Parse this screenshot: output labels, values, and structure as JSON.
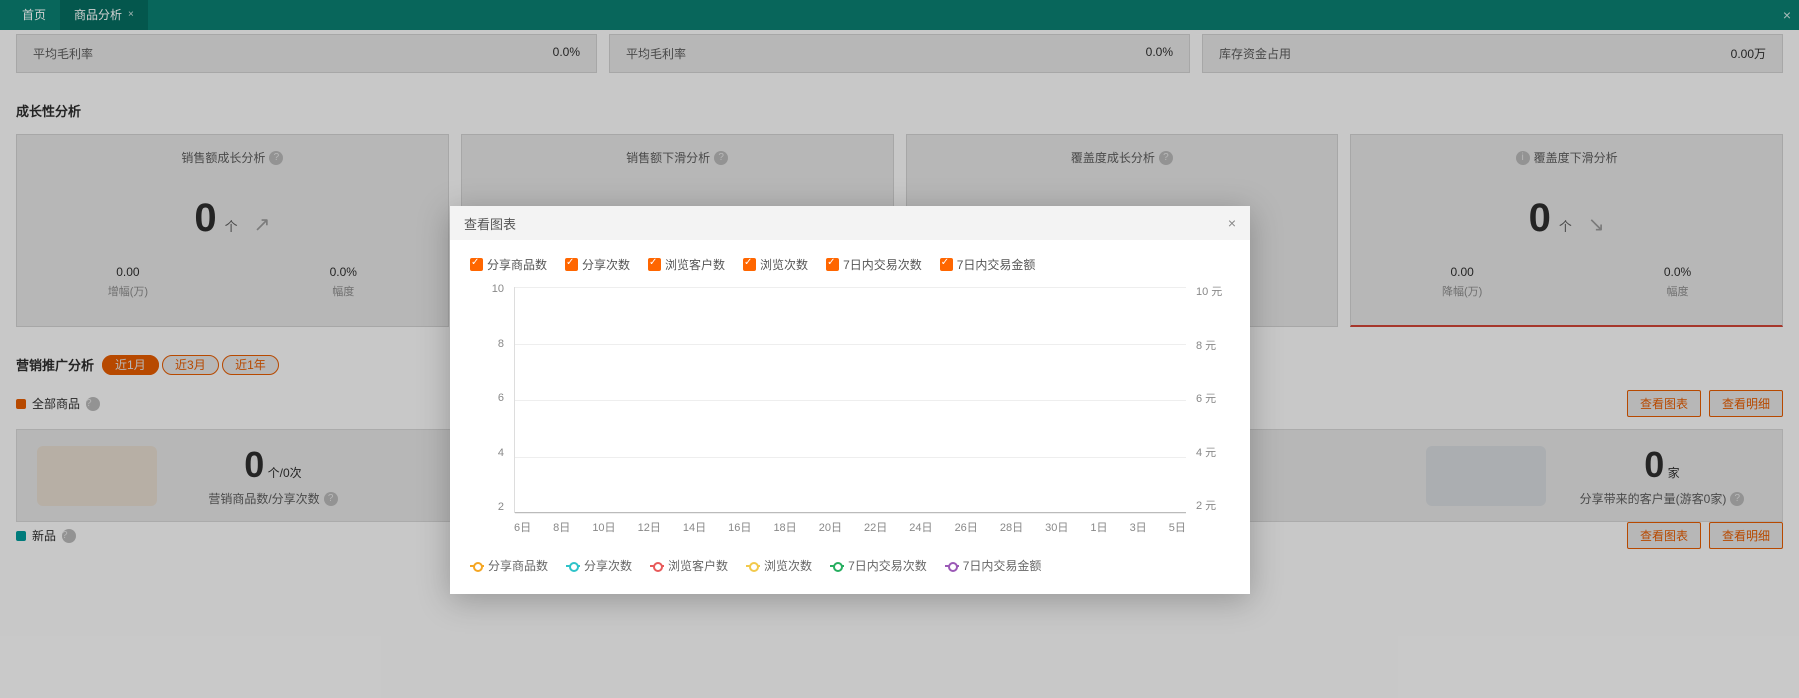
{
  "tabs": {
    "home": "首页",
    "active": "商品分析"
  },
  "stat_cards": [
    {
      "label": "平均毛利率",
      "value": "0.0%"
    },
    {
      "label": "平均毛利率",
      "value": "0.0%"
    },
    {
      "label": "库存资金占用",
      "value": "0.00万"
    }
  ],
  "growth": {
    "section_title": "成长性分析",
    "cards": [
      {
        "title": "销售额成长分析",
        "big": "0",
        "unit": "个",
        "trend": "up",
        "sub": [
          {
            "v": "0.00",
            "l": "增幅(万)"
          },
          {
            "v": "0.0%",
            "l": "幅度"
          }
        ]
      },
      {
        "title": "销售额下滑分析"
      },
      {
        "title": "覆盖度成长分析"
      },
      {
        "title": "覆盖度下滑分析",
        "big": "0",
        "unit": "个",
        "trend": "down",
        "red": true,
        "sub": [
          {
            "v": "0.00",
            "l": "降幅(万)"
          },
          {
            "v": "0.0%",
            "l": "幅度"
          }
        ]
      }
    ]
  },
  "marketing": {
    "section_title": "营销推广分析",
    "pills": [
      "近1月",
      "近3月",
      "近1年"
    ],
    "active_pill": 0,
    "rows": [
      {
        "label": "全部商品",
        "color": "orange",
        "left": {
          "big": "0",
          "unit": "个/0次",
          "desc": "营销商品数/分享次数"
        },
        "right": {
          "big": "0",
          "unit": "家",
          "desc": "分享带来的客户量(游客0家)"
        },
        "buttons": [
          "查看图表",
          "查看明细"
        ]
      },
      {
        "label": "新品",
        "color": "teal",
        "buttons": [
          "查看图表",
          "查看明细"
        ]
      }
    ]
  },
  "modal": {
    "title": "查看图表",
    "checks": [
      "分享商品数",
      "分享次数",
      "浏览客户数",
      "浏览次数",
      "7日内交易次数",
      "7日内交易金额"
    ],
    "chart": {
      "y_left": [
        "10",
        "8",
        "6",
        "4",
        "2"
      ],
      "y_right_suffix": "元",
      "y_right": [
        "10",
        "8",
        "6",
        "4",
        "2"
      ],
      "x": [
        "6日",
        "8日",
        "10日",
        "12日",
        "14日",
        "16日",
        "18日",
        "20日",
        "22日",
        "24日",
        "26日",
        "28日",
        "30日",
        "1日",
        "3日",
        "5日"
      ]
    },
    "legend": [
      {
        "label": "分享商品数",
        "color": "#f5a623"
      },
      {
        "label": "分享次数",
        "color": "#2fc3c9"
      },
      {
        "label": "浏览客户数",
        "color": "#e85a5a"
      },
      {
        "label": "浏览次数",
        "color": "#f2c94c"
      },
      {
        "label": "7日内交易次数",
        "color": "#27ae60"
      },
      {
        "label": "7日内交易金额",
        "color": "#9b59b6"
      }
    ]
  }
}
